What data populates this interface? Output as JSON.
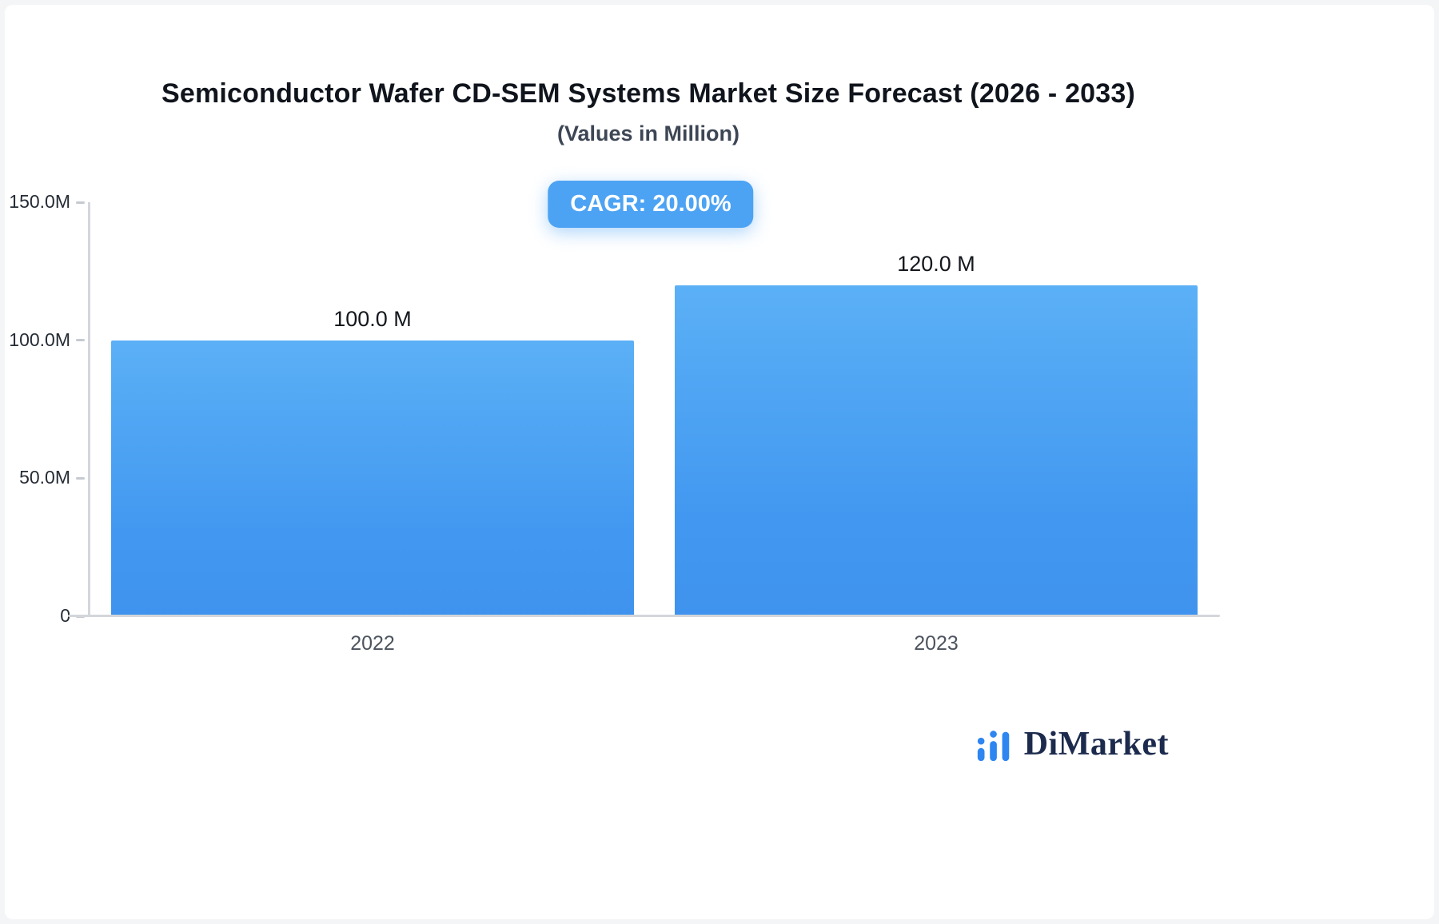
{
  "title": "Semiconductor Wafer CD-SEM Systems Market Size Forecast (2026 - 2033)",
  "subtitle": "(Values in Million)",
  "cagr_badge": "CAGR: 20.00%",
  "brand": {
    "name": "DiMarket"
  },
  "chart_data": {
    "type": "bar",
    "title": "Semiconductor Wafer CD-SEM Systems Market Size Forecast (2026 - 2033)",
    "subtitle": "(Values in Million)",
    "unit": "Million",
    "cagr_percent": "20.00%",
    "categories": [
      "2022",
      "2023"
    ],
    "values": [
      100.0,
      120.0
    ],
    "value_labels": [
      "100.0 M",
      "120.0 M"
    ],
    "xlabel": "",
    "ylabel": "",
    "ylim": [
      0,
      150
    ],
    "yticks": [
      {
        "value": 150,
        "label": "150.0M"
      },
      {
        "value": 100,
        "label": "100.0M"
      },
      {
        "value": 50,
        "label": "50.0M"
      },
      {
        "value": 0,
        "label": "0"
      }
    ],
    "grid": false,
    "legend_position": "none",
    "bar_color_top": "#5bb0f6",
    "bar_color_bottom": "#3f93ee",
    "badge_color": "#4da3f3",
    "axis_color": "#d3d6da"
  }
}
